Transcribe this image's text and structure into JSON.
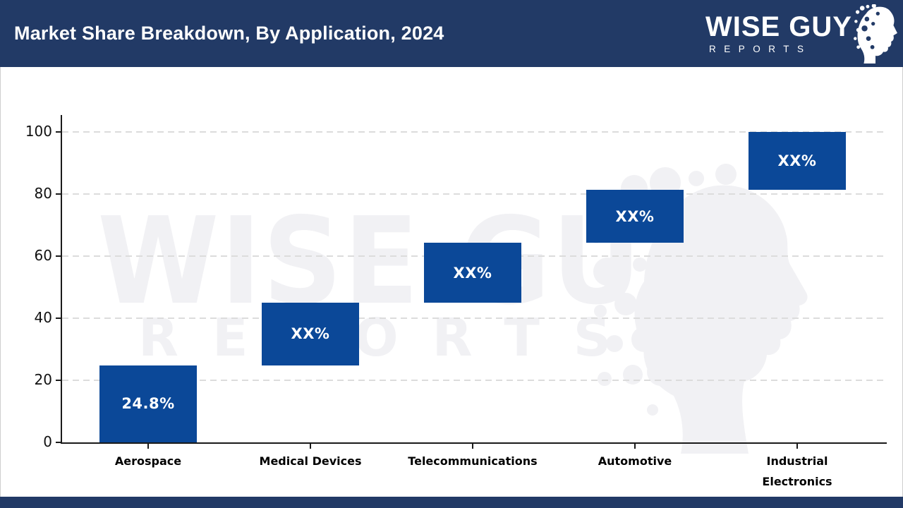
{
  "header": {
    "title": "Market Share Breakdown, By Application, 2024"
  },
  "logo": {
    "wordmark": "WISE GUY",
    "subtext": "REPORTS"
  },
  "watermark": {
    "line1": "WISE GUY",
    "line2": "REPORTS"
  },
  "chart_data": {
    "type": "bar",
    "variant": "waterfall",
    "title": "Market Share Breakdown, By Application, 2024",
    "categories": [
      "Aerospace",
      "Medical Devices",
      "Telecommunications",
      "Automotive",
      "Industrial\nElectronics"
    ],
    "segments": [
      {
        "category": "Aerospace",
        "label": "24.8%",
        "start": 0,
        "end": 24.8
      },
      {
        "category": "Medical Devices",
        "label": "XX%",
        "start": 24.8,
        "end": 45.0
      },
      {
        "category": "Telecommunications",
        "label": "XX%",
        "start": 45.0,
        "end": 64.3
      },
      {
        "category": "Automotive",
        "label": "XX%",
        "start": 64.3,
        "end": 81.3
      },
      {
        "category": "Industrial Electronics",
        "label": "XX%",
        "start": 81.3,
        "end": 100.0
      }
    ],
    "ylim": [
      0,
      100
    ],
    "yticks": [
      0,
      20,
      40,
      60,
      80,
      100
    ],
    "grid": "horizontal-dashed",
    "legend": "none",
    "bar_color": "#0b4898",
    "bar_label_color": "#ffffff",
    "header_bg": "#223a66",
    "footer_bg": "#223a66",
    "watermark_color": "#f1f1f4"
  }
}
